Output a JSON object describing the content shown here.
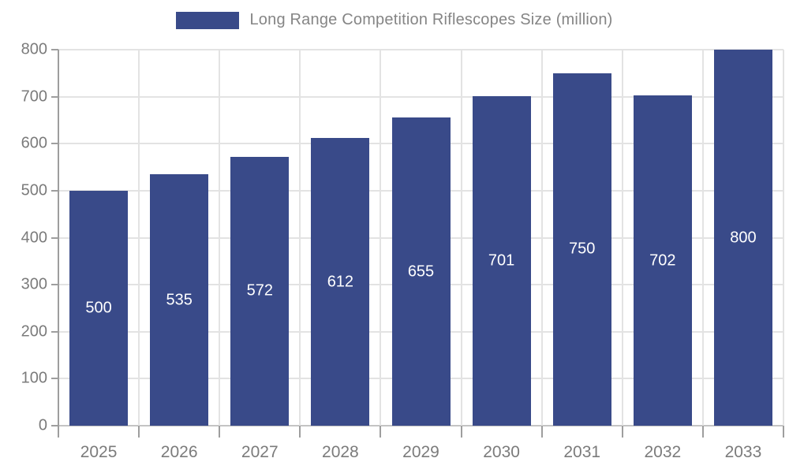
{
  "chart_data": {
    "type": "bar",
    "title": "",
    "legend": {
      "label": "Long Range Competition Riflescopes Size (million)",
      "position": "top"
    },
    "categories": [
      "2025",
      "2026",
      "2027",
      "2028",
      "2029",
      "2030",
      "2031",
      "2032",
      "2033"
    ],
    "series": [
      {
        "name": "Long Range Competition Riflescopes Size (million)",
        "values": [
          500,
          535,
          572,
          612,
          655,
          701,
          750,
          702,
          800
        ]
      }
    ],
    "value_labels_shown": true,
    "xlabel": "",
    "ylabel": "",
    "ylim": [
      0,
      800
    ],
    "yticks": [
      0,
      100,
      200,
      300,
      400,
      500,
      600,
      700,
      800
    ],
    "grid": true
  },
  "colors": {
    "bar": "#394a89",
    "legend_text": "#858585",
    "tick_label": "#7b7b7b",
    "grid": "#e3e3e3",
    "baseline": "#c4c4c4",
    "axis": "#9e9e9e",
    "value_label": "#ffffff",
    "background": "#ffffff"
  }
}
